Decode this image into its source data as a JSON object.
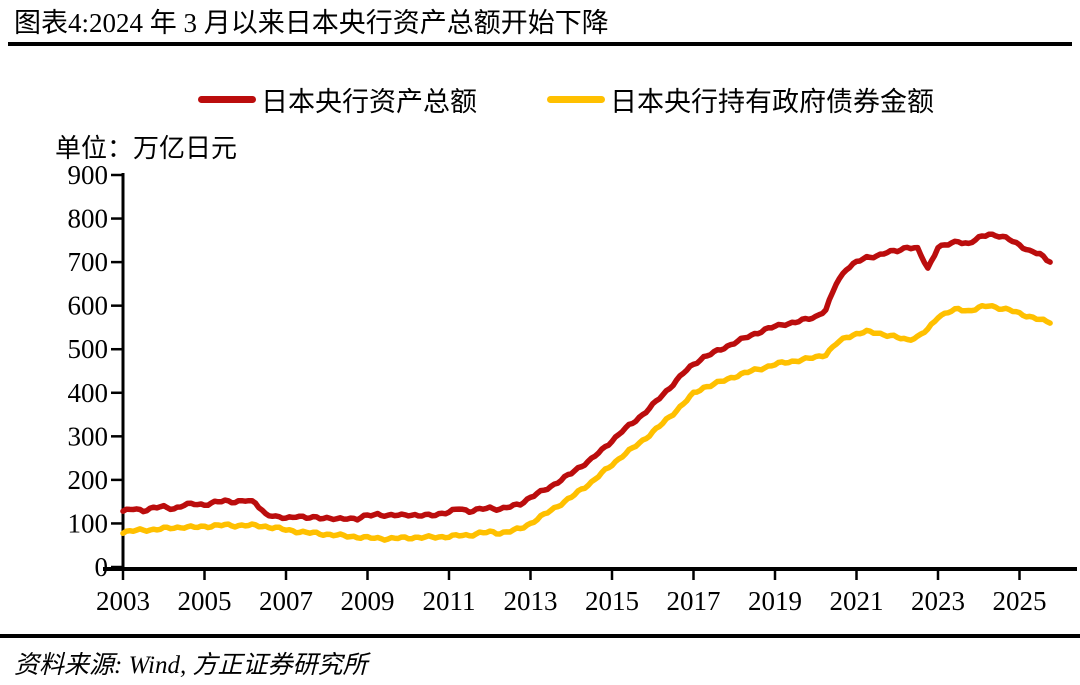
{
  "page": {
    "title": "图表4:2024 年 3 月以来日本央行资产总额开始下降",
    "source": "资料来源: Wind, 方正证券研究所"
  },
  "chart_data": {
    "type": "line",
    "title": "图表4:2024 年 3 月以来日本央行资产总额开始下降",
    "unit_label": "单位：万亿日元",
    "xlabel": "",
    "ylabel": "万亿日元",
    "ylim": [
      0,
      900
    ],
    "xlim": [
      2003,
      2026.1
    ],
    "y_ticks": [
      0,
      100,
      200,
      300,
      400,
      500,
      600,
      700,
      800,
      900
    ],
    "x_ticks": [
      2003,
      2005,
      2007,
      2009,
      2011,
      2013,
      2015,
      2017,
      2019,
      2021,
      2023,
      2025
    ],
    "grid": false,
    "legend_position": "top",
    "x": [
      2003.0,
      2003.25,
      2003.5,
      2003.75,
      2004.0,
      2004.25,
      2004.5,
      2004.75,
      2005.0,
      2005.25,
      2005.5,
      2005.75,
      2006.0,
      2006.25,
      2006.5,
      2006.75,
      2007.0,
      2007.25,
      2007.5,
      2007.75,
      2008.0,
      2008.25,
      2008.5,
      2008.75,
      2009.0,
      2009.25,
      2009.5,
      2009.75,
      2010.0,
      2010.25,
      2010.5,
      2010.75,
      2011.0,
      2011.25,
      2011.5,
      2011.75,
      2012.0,
      2012.25,
      2012.5,
      2012.75,
      2013.0,
      2013.25,
      2013.5,
      2013.75,
      2014.0,
      2014.25,
      2014.5,
      2014.75,
      2015.0,
      2015.25,
      2015.5,
      2015.75,
      2016.0,
      2016.25,
      2016.5,
      2016.75,
      2017.0,
      2017.25,
      2017.5,
      2017.75,
      2018.0,
      2018.25,
      2018.5,
      2018.75,
      2019.0,
      2019.25,
      2019.5,
      2019.75,
      2020.0,
      2020.25,
      2020.5,
      2020.75,
      2021.0,
      2021.25,
      2021.5,
      2021.75,
      2022.0,
      2022.25,
      2022.5,
      2022.75,
      2023.0,
      2023.25,
      2023.5,
      2023.75,
      2024.0,
      2024.25,
      2024.5,
      2024.75,
      2025.0,
      2025.25,
      2025.5,
      2025.75
    ],
    "series": [
      {
        "id": "boj-total-assets",
        "name": "日本央行资产总额",
        "color": "#BB0D0D",
        "values": [
          128,
          133,
          130,
          136,
          138,
          134,
          142,
          145,
          143,
          148,
          152,
          150,
          152,
          148,
          122,
          114,
          113,
          117,
          112,
          115,
          112,
          109,
          113,
          110,
          118,
          122,
          117,
          119,
          121,
          117,
          119,
          122,
          125,
          135,
          128,
          132,
          136,
          133,
          138,
          145,
          160,
          172,
          185,
          200,
          215,
          232,
          248,
          268,
          290,
          312,
          330,
          350,
          372,
          395,
          420,
          445,
          465,
          482,
          492,
          503,
          515,
          525,
          535,
          545,
          552,
          558,
          562,
          568,
          575,
          590,
          650,
          685,
          700,
          710,
          715,
          722,
          726,
          735,
          730,
          685,
          735,
          740,
          748,
          742,
          755,
          765,
          760,
          752,
          740,
          725,
          718,
          700
        ]
      },
      {
        "id": "boj-jgb-holdings",
        "name": "日本央行持有政府债券金额",
        "color": "#FFC000",
        "values": [
          80,
          83,
          85,
          86,
          88,
          90,
          92,
          91,
          93,
          95,
          96,
          95,
          96,
          95,
          93,
          90,
          85,
          82,
          79,
          77,
          75,
          73,
          71,
          69,
          67,
          66,
          65,
          66,
          67,
          68,
          68,
          69,
          70,
          72,
          73,
          78,
          80,
          78,
          82,
          88,
          100,
          115,
          130,
          145,
          160,
          178,
          195,
          215,
          235,
          255,
          272,
          290,
          310,
          330,
          352,
          375,
          398,
          412,
          420,
          428,
          437,
          445,
          452,
          458,
          465,
          470,
          473,
          477,
          482,
          488,
          512,
          528,
          535,
          540,
          538,
          532,
          527,
          522,
          528,
          545,
          575,
          585,
          592,
          588,
          595,
          600,
          595,
          590,
          582,
          575,
          568,
          560
        ]
      }
    ]
  }
}
